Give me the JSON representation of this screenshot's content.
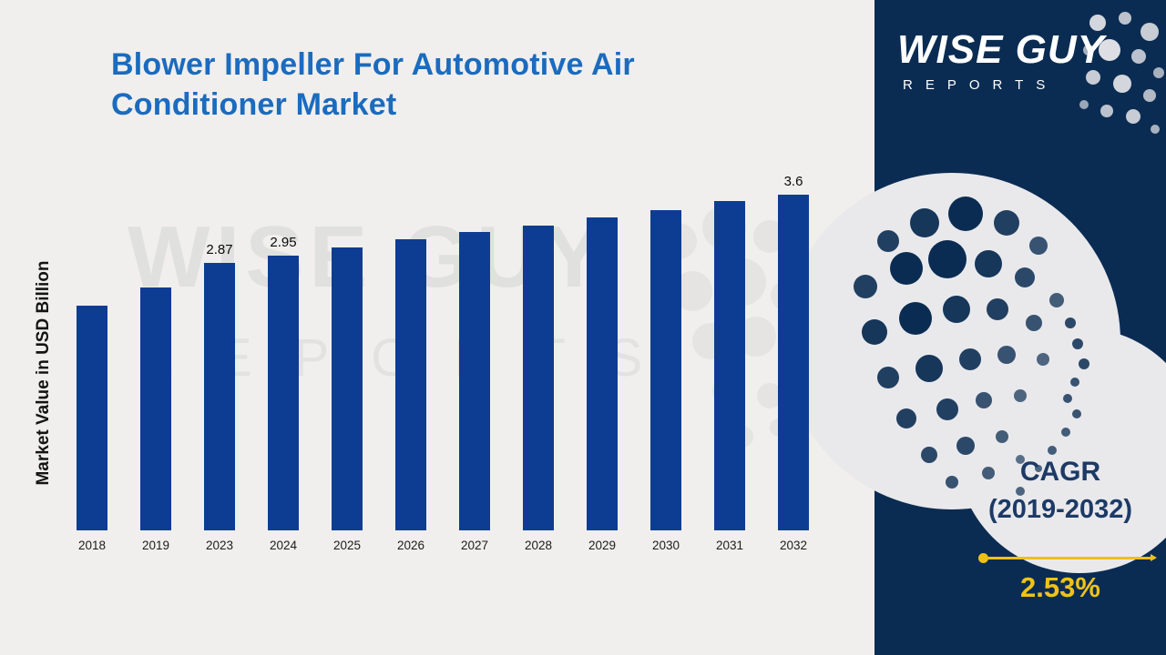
{
  "header": {
    "title": "Blower Impeller For Automotive Air Conditioner Market"
  },
  "logo": {
    "line1": "WISE GUY",
    "line2": "REPORTS"
  },
  "watermark": {
    "line1": "WISE GUY",
    "line2": "REPORTS"
  },
  "cagr": {
    "label": "CAGR",
    "range": "(2019-2032)",
    "value": "2.53%"
  },
  "chart_data": {
    "type": "bar",
    "title": "Blower Impeller For Automotive Air Conditioner Market",
    "xlabel": "",
    "ylabel": "Market Value in USD Billion",
    "categories": [
      "2018",
      "2019",
      "2023",
      "2024",
      "2025",
      "2026",
      "2027",
      "2028",
      "2029",
      "2030",
      "2031",
      "2032"
    ],
    "values": [
      2.41,
      2.61,
      2.87,
      2.95,
      3.04,
      3.12,
      3.2,
      3.27,
      3.36,
      3.44,
      3.53,
      3.6
    ],
    "data_labels": [
      "",
      "",
      "2.87",
      "2.95",
      "",
      "",
      "",
      "",
      "",
      "",
      "",
      "3.6"
    ],
    "unit": "USD Billion",
    "ylim": [
      0,
      4.1
    ],
    "grid": false,
    "legend": false,
    "bar_color": "#0d3d92"
  },
  "colors": {
    "title_blue": "#1b6bbf",
    "bar_blue": "#0d3d92",
    "panel_navy": "#0b2c52",
    "accent_yellow": "#eec117",
    "background": "#f0efed",
    "circle_gray": "#e9e9ec"
  }
}
